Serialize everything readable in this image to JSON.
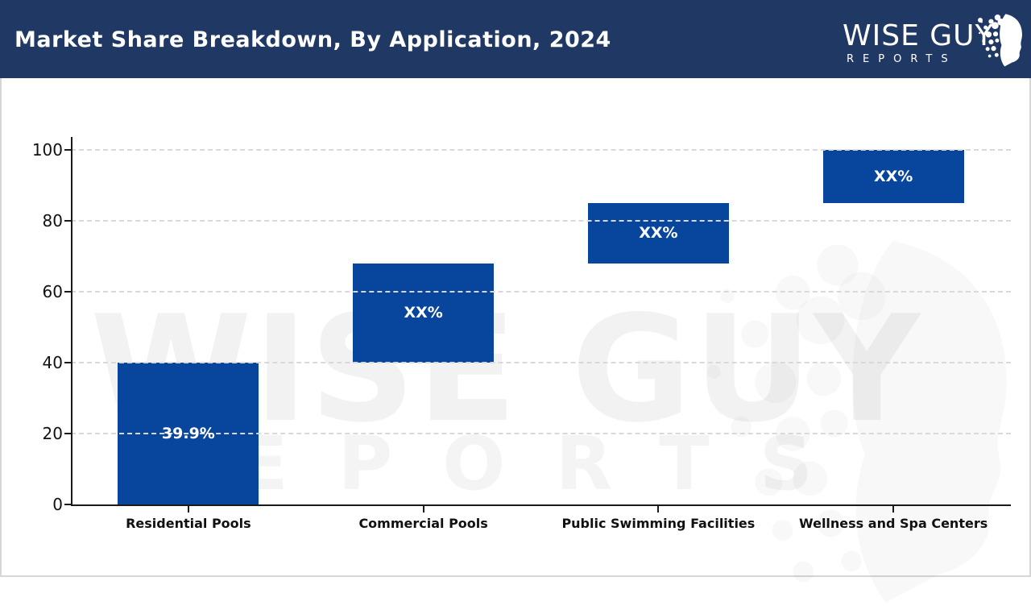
{
  "header": {
    "title": "Market Share Breakdown, By Application, 2024"
  },
  "logo": {
    "line1": "WISE GUY",
    "line2": "REPORTS"
  },
  "watermark": {
    "line1": "WISE GUY",
    "line2": "REPORTS"
  },
  "colors": {
    "header_bg": "#1f3864",
    "bar_blue": "#08459c",
    "gridline": "#d9d9d9",
    "axis": "#1a1a1a",
    "value_label": "#ffffff"
  },
  "chart_data": {
    "type": "bar",
    "subtype": "floating-waterfall",
    "title": "Market Share Breakdown, By Application, 2024",
    "categories": [
      "Residential Pools",
      "Commercial Pools",
      "Public Swimming Facilities",
      "Wellness and Spa Centers"
    ],
    "bars": [
      {
        "category": "Residential Pools",
        "start": 0,
        "end": 39.9,
        "label": "39.9%"
      },
      {
        "category": "Commercial Pools",
        "start": 40,
        "end": 68,
        "label": "XX%"
      },
      {
        "category": "Public Swimming Facilities",
        "start": 68,
        "end": 85,
        "label": "XX%"
      },
      {
        "category": "Wellness and Spa Centers",
        "start": 85,
        "end": 100,
        "label": "XX%"
      }
    ],
    "yticks": [
      0,
      20,
      40,
      60,
      80,
      100
    ],
    "ylim": [
      0,
      105
    ],
    "xlabel": "",
    "ylabel": "",
    "grid": "horizontal-dashed",
    "legend": "none",
    "bar_color": "#08459c",
    "value_label_color": "#ffffff"
  }
}
